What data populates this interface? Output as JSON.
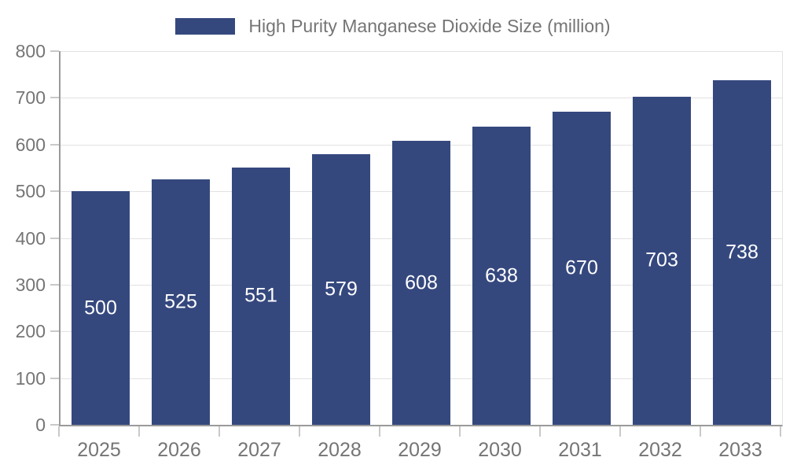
{
  "legend": {
    "label": "High Purity Manganese Dioxide Size (million)"
  },
  "chart_data": {
    "type": "bar",
    "title": "High Purity Manganese Dioxide Size (million)",
    "categories": [
      "2025",
      "2026",
      "2027",
      "2028",
      "2029",
      "2030",
      "2031",
      "2032",
      "2033"
    ],
    "values": [
      500,
      525,
      551,
      579,
      608,
      638,
      670,
      703,
      738
    ],
    "xlabel": "",
    "ylabel": "",
    "ylim": [
      0,
      800
    ],
    "yticks": [
      0,
      100,
      200,
      300,
      400,
      500,
      600,
      700,
      800
    ],
    "grid": true,
    "legend_position": "top-center",
    "bar_color": "#35487E",
    "bar_label_color": "#FFFFFF",
    "axis_text_color": "#757575",
    "grid_color": "#E2E2E2",
    "axis_line_color": "#9A9A9A"
  }
}
